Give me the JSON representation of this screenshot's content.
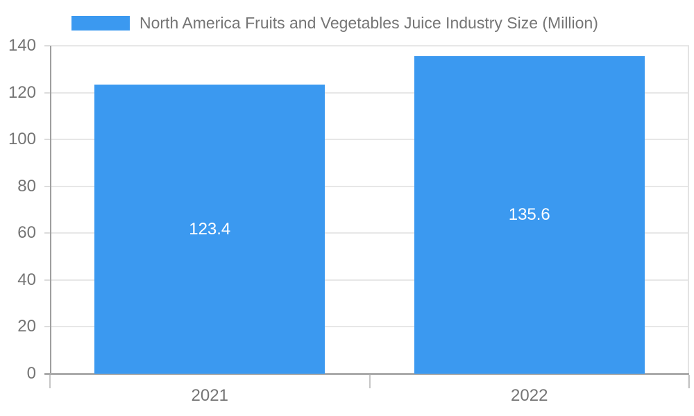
{
  "legend": {
    "label": "North America Fruits and Vegetables Juice Industry Size (Million)",
    "swatch_color": "#3B99F0"
  },
  "chart_data": {
    "type": "bar",
    "title": "North America Fruits and Vegetables Juice Industry Size (Million)",
    "categories": [
      "2021",
      "2022"
    ],
    "series": [
      {
        "name": "North America Fruits and Vegetables Juice Industry Size (Million)",
        "values": [
          123.4,
          135.6
        ]
      }
    ],
    "value_labels": [
      "123.4",
      "135.6"
    ],
    "xlabel": "",
    "ylabel": "",
    "ylim": [
      0,
      140
    ],
    "ytick_step": 20,
    "yticks": [
      "0",
      "20",
      "40",
      "60",
      "80",
      "100",
      "120",
      "140"
    ],
    "grid": true,
    "legend_position": "top",
    "colors": {
      "bar": "#3B99F0",
      "bar_label_text": "#FFFFFF",
      "axis_text": "#757575",
      "gridline": "#E7E7E7",
      "axis_line": "#A6A6A6",
      "background": "#FFFFFF"
    }
  }
}
